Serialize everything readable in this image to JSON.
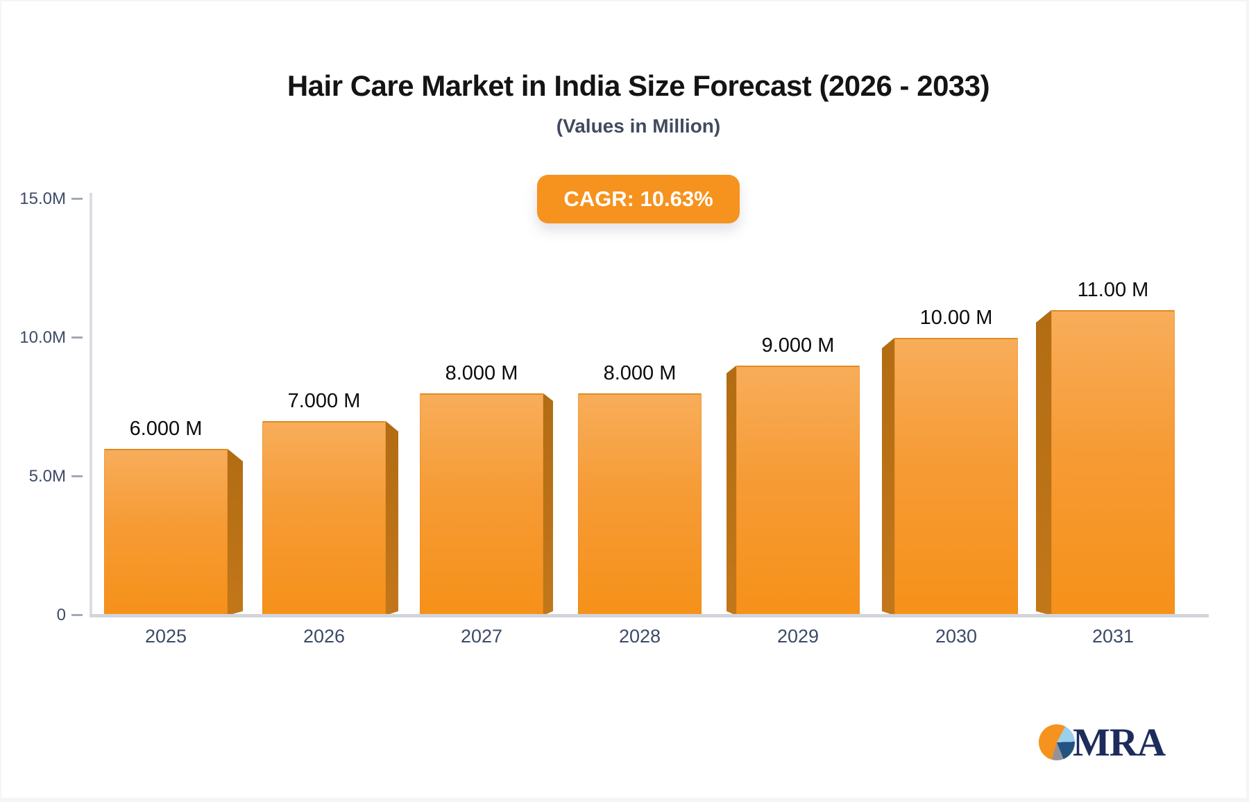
{
  "header": {
    "title": "Hair Care Market in India Size Forecast (2026 - 2033)",
    "subtitle": "(Values in Million)",
    "cagr_badge": "CAGR: 10.63%"
  },
  "chart_data": {
    "type": "bar",
    "title": "Hair Care Market in India Size Forecast (2026 - 2033)",
    "subtitle": "(Values in Million)",
    "unit": "Million",
    "cagr": "10.63%",
    "categories": [
      "2025",
      "2026",
      "2027",
      "2028",
      "2029",
      "2030",
      "2031"
    ],
    "values": [
      6,
      7,
      8,
      8,
      9,
      10,
      11
    ],
    "value_labels": [
      "6.000 M",
      "7.000 M",
      "8.000 M",
      "8.000 M",
      "9.000 M",
      "10.00 M",
      "11.00 M"
    ],
    "y_axis": {
      "ylim": [
        0,
        15
      ],
      "ticks": [
        {
          "label": "15.0M",
          "value": 15
        },
        {
          "label": "10.0M",
          "value": 10
        },
        {
          "label": "5.0M",
          "value": 5
        },
        {
          "label": "0",
          "value": 0
        }
      ],
      "grid": false
    },
    "legend_position": "none",
    "style_3d": true,
    "colors": {
      "bar_top": "#f8ad5a",
      "bar_bottom": "#f69119",
      "bar_side": "#bc7216",
      "badge_bg": "#f6921e",
      "axis_line": "#d2d5db",
      "tick_text": "#3d4b66",
      "value_text": "#0c0c0c",
      "title_text": "#141414"
    }
  },
  "branding": {
    "logo_text": "MRA"
  }
}
